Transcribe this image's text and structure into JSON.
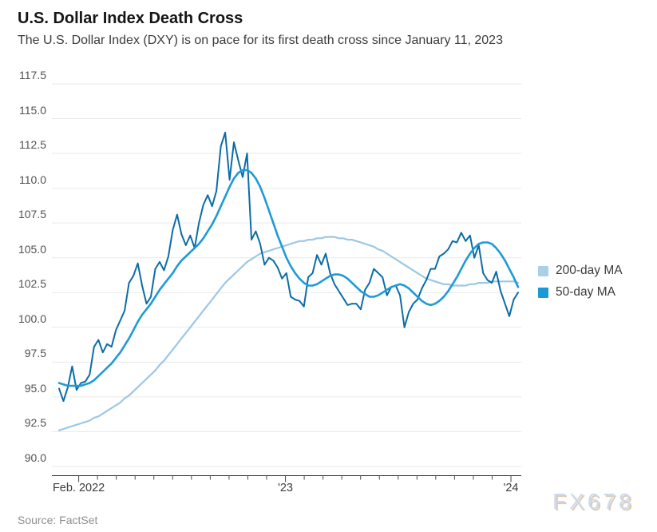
{
  "header": {
    "title": "U.S. Dollar Index Death Cross",
    "subtitle": "The U.S. Dollar Index (DXY) is on pace for its first death cross since January 11, 2023"
  },
  "source_label": "Source: FactSet",
  "watermark": "FX678",
  "legend": [
    {
      "label": "200-day MA",
      "color": "#a9cfe9"
    },
    {
      "label": "50-day MA",
      "color": "#1b99d6"
    }
  ],
  "colors": {
    "gridline": "#e9e9e9",
    "axis_line": "#2f2f2f",
    "tick": "#4a4a4a"
  },
  "chart_data": {
    "type": "line",
    "title": "U.S. Dollar Index Death Cross",
    "subtitle": "The U.S. Dollar Index (DXY) is on pace for its first death cross since January 11, 2023",
    "xlabel": "",
    "ylabel": "",
    "ylim": [
      90.0,
      117.5
    ],
    "grid": true,
    "legend_position": "right",
    "legend_entries": [
      "200-day MA",
      "50-day MA"
    ],
    "yticks": [
      {
        "value": 117.5,
        "label": "117.5"
      },
      {
        "value": 115.0,
        "label": "115.0"
      },
      {
        "value": 112.5,
        "label": "112.5"
      },
      {
        "value": 110.0,
        "label": "110.0"
      },
      {
        "value": 107.5,
        "label": "107.5"
      },
      {
        "value": 105.0,
        "label": "105.0"
      },
      {
        "value": 102.5,
        "label": "102.5"
      },
      {
        "value": 100.0,
        "label": "100.0"
      },
      {
        "value": 97.5,
        "label": "97.5"
      },
      {
        "value": 95.0,
        "label": "95.0"
      },
      {
        "value": 92.5,
        "label": "92.5"
      },
      {
        "value": 90.0,
        "label": "90.0"
      }
    ],
    "x_axis": {
      "months_total": 24,
      "major_ticks": [
        {
          "label": "Feb. 2022",
          "month_index": 0
        },
        {
          "label": "'23",
          "month_index": 11
        },
        {
          "label": "'24",
          "month_index": 23
        }
      ]
    },
    "x_range_note": "weekly samples, Jan 2022 through mid-Jan 2024",
    "series": [
      {
        "id": "ma200-line",
        "name": "200-day MA",
        "color": "#9cc7e5",
        "width": 2.2,
        "values": [
          92.6,
          92.7,
          92.8,
          92.9,
          93.0,
          93.1,
          93.2,
          93.3,
          93.5,
          93.6,
          93.8,
          94.0,
          94.2,
          94.4,
          94.6,
          94.9,
          95.1,
          95.4,
          95.7,
          96.0,
          96.3,
          96.6,
          96.9,
          97.3,
          97.6,
          98.0,
          98.4,
          98.8,
          99.2,
          99.6,
          100.0,
          100.4,
          100.8,
          101.2,
          101.6,
          102.0,
          102.4,
          102.8,
          103.2,
          103.5,
          103.8,
          104.1,
          104.4,
          104.7,
          104.9,
          105.1,
          105.3,
          105.4,
          105.5,
          105.6,
          105.7,
          105.8,
          105.9,
          106.0,
          106.1,
          106.2,
          106.2,
          106.3,
          106.3,
          106.4,
          106.4,
          106.5,
          106.5,
          106.5,
          106.4,
          106.4,
          106.3,
          106.3,
          106.2,
          106.1,
          106.0,
          105.9,
          105.8,
          105.6,
          105.5,
          105.3,
          105.1,
          104.9,
          104.7,
          104.5,
          104.3,
          104.1,
          103.9,
          103.7,
          103.5,
          103.4,
          103.3,
          103.2,
          103.1,
          103.1,
          103.0,
          103.0,
          103.0,
          103.0,
          103.1,
          103.1,
          103.2,
          103.2,
          103.2,
          103.3,
          103.3,
          103.3,
          103.3,
          103.3,
          103.3,
          103.2
        ]
      },
      {
        "id": "dxy-line",
        "name": "DXY",
        "color": "#0c6ca6",
        "width": 2,
        "values": [
          95.6,
          94.7,
          95.7,
          97.2,
          95.5,
          96.0,
          96.1,
          96.6,
          98.6,
          99.1,
          98.2,
          98.8,
          98.6,
          99.8,
          100.5,
          101.2,
          103.2,
          103.7,
          104.6,
          103.0,
          101.7,
          102.2,
          104.2,
          104.7,
          104.1,
          105.1,
          107.0,
          108.1,
          106.7,
          105.9,
          106.6,
          105.7,
          107.5,
          108.8,
          109.5,
          108.7,
          109.8,
          113.0,
          114.0,
          110.6,
          113.3,
          112.0,
          110.8,
          112.5,
          106.3,
          106.9,
          106.0,
          104.5,
          105.0,
          104.8,
          104.3,
          103.5,
          103.9,
          102.2,
          102.0,
          101.9,
          101.5,
          103.6,
          103.9,
          105.2,
          104.5,
          105.3,
          103.9,
          103.1,
          102.6,
          102.1,
          101.6,
          101.7,
          101.7,
          101.3,
          102.7,
          103.2,
          104.2,
          103.9,
          103.6,
          102.3,
          102.9,
          103.0,
          102.3,
          100.0,
          101.1,
          101.7,
          102.0,
          102.8,
          103.4,
          104.2,
          104.2,
          105.1,
          105.3,
          105.6,
          106.2,
          106.1,
          106.8,
          106.2,
          106.6,
          105.0,
          105.9,
          103.9,
          103.4,
          103.2,
          104.0,
          102.6,
          101.7,
          100.8,
          102.0,
          102.5
        ]
      },
      {
        "id": "ma50-line",
        "name": "50-day MA",
        "color": "#1e9ad6",
        "width": 2.6,
        "values": [
          96.0,
          95.9,
          95.8,
          95.8,
          95.8,
          95.8,
          95.9,
          96.0,
          96.2,
          96.5,
          96.8,
          97.1,
          97.4,
          97.8,
          98.2,
          98.7,
          99.2,
          99.8,
          100.4,
          100.9,
          101.3,
          101.7,
          102.2,
          102.7,
          103.1,
          103.5,
          103.9,
          104.4,
          104.8,
          105.1,
          105.4,
          105.7,
          106.0,
          106.4,
          106.9,
          107.4,
          108.0,
          108.7,
          109.4,
          110.1,
          110.7,
          111.1,
          111.3,
          111.3,
          111.1,
          110.7,
          110.1,
          109.3,
          108.4,
          107.5,
          106.6,
          105.8,
          105.0,
          104.4,
          103.9,
          103.5,
          103.2,
          103.0,
          103.0,
          103.1,
          103.3,
          103.5,
          103.7,
          103.8,
          103.8,
          103.7,
          103.5,
          103.2,
          102.9,
          102.6,
          102.4,
          102.2,
          102.2,
          102.3,
          102.5,
          102.7,
          102.9,
          103.0,
          103.1,
          103.0,
          102.8,
          102.5,
          102.2,
          101.9,
          101.7,
          101.6,
          101.7,
          101.9,
          102.2,
          102.6,
          103.1,
          103.6,
          104.2,
          104.8,
          105.3,
          105.7,
          106.0,
          106.1,
          106.1,
          106.0,
          105.7,
          105.3,
          104.8,
          104.2,
          103.6,
          102.9
        ]
      }
    ]
  }
}
